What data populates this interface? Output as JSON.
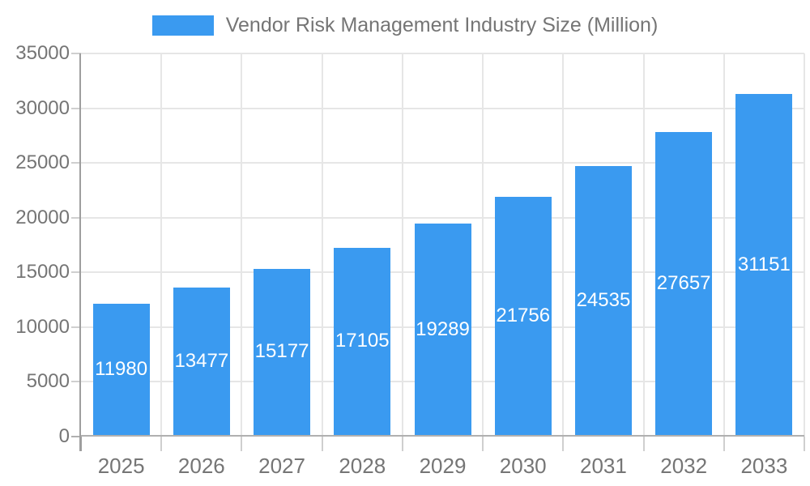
{
  "chart_data": {
    "type": "bar",
    "title": "Vendor Risk Management Industry Size (Million)",
    "categories": [
      "2025",
      "2026",
      "2027",
      "2028",
      "2029",
      "2030",
      "2031",
      "2032",
      "2033"
    ],
    "values": [
      11980,
      13477,
      15177,
      17105,
      19289,
      21756,
      24535,
      27657,
      31151
    ],
    "series_name": "Vendor Risk Management Industry Size (Million)",
    "xlabel": "",
    "ylabel": "",
    "ylim": [
      0,
      35000
    ],
    "ytick_step": 5000,
    "ytick_labels": [
      "0",
      "5000",
      "10000",
      "15000",
      "20000",
      "25000",
      "30000",
      "35000"
    ],
    "grid": true,
    "legend_position": "top",
    "value_labels": "inside-center"
  },
  "colors": {
    "bar": "#3a9af0",
    "value_label": "#ffffff",
    "axis_text": "#757575",
    "title_text": "#757575",
    "grid_line": "#e6e6e6",
    "axis_line_left": "#9e9e9e",
    "axis_line_bottom": "#b0b0b0",
    "tick": "#cfcfcf",
    "background": "#ffffff"
  }
}
